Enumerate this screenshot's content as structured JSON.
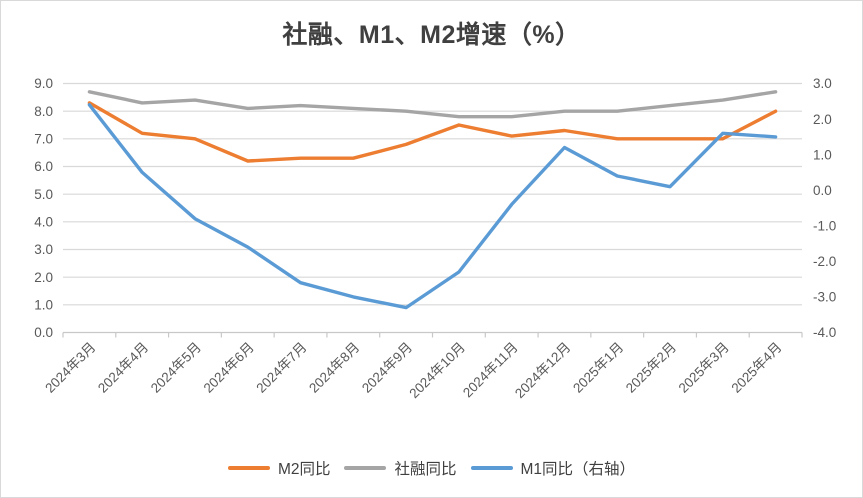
{
  "title": "社融、M1、M2增速（%）",
  "chart_data": {
    "type": "line",
    "categories": [
      "2024年3月",
      "2024年4月",
      "2024年5月",
      "2024年6月",
      "2024年7月",
      "2024年8月",
      "2024年9月",
      "2024年10月",
      "2024年11月",
      "2024年12月",
      "2025年1月",
      "2025年2月",
      "2025年3月",
      "2025年4月"
    ],
    "series": [
      {
        "name": "M2同比",
        "axis": "left",
        "color": "#ED7D31",
        "values": [
          8.3,
          7.2,
          7.0,
          6.2,
          6.3,
          6.3,
          6.8,
          7.5,
          7.1,
          7.3,
          7.0,
          7.0,
          7.0,
          8.0
        ]
      },
      {
        "name": "社融同比",
        "axis": "left",
        "color": "#A5A5A5",
        "values": [
          8.7,
          8.3,
          8.4,
          8.1,
          8.2,
          8.1,
          8.0,
          7.8,
          7.8,
          8.0,
          8.0,
          8.2,
          8.4,
          8.7
        ]
      },
      {
        "name": "M1同比（右轴）",
        "axis": "right",
        "color": "#5B9BD5",
        "values": [
          2.4,
          0.5,
          -0.8,
          -1.6,
          -2.6,
          -3.0,
          -3.3,
          -2.3,
          -0.4,
          1.2,
          0.4,
          0.1,
          1.6,
          1.5
        ]
      }
    ],
    "left_axis": {
      "min": 0,
      "max": 9,
      "step": 1,
      "tick_labels": [
        "9.0",
        "8.0",
        "7.0",
        "6.0",
        "5.0",
        "4.0",
        "3.0",
        "2.0",
        "1.0",
        "0.0"
      ]
    },
    "right_axis": {
      "min": -4,
      "max": 3,
      "step": 1,
      "tick_labels": [
        "3.0",
        "2.0",
        "1.0",
        "0.0",
        "-1.0",
        "-2.0",
        "-3.0",
        "-4.0"
      ]
    },
    "grid": true,
    "legend_position": "bottom",
    "x_label_rotation_deg": -45
  },
  "colors": {
    "gridline": "#d9d9d9",
    "axis_line": "#c8c8c8",
    "axis_text": "#595959",
    "title_text": "#404040"
  }
}
